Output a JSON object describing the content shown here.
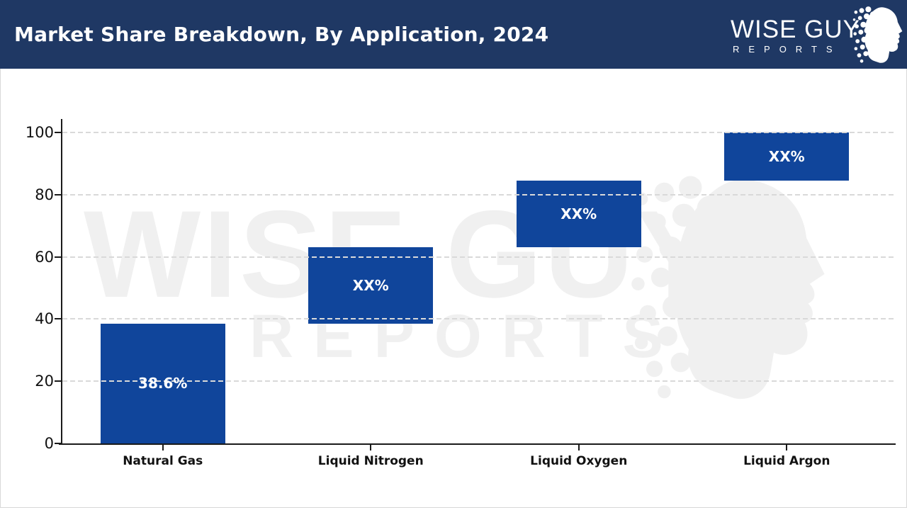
{
  "header": {
    "title": "Market Share Breakdown, By Application, 2024",
    "logo": {
      "primary": "WISE GUY",
      "secondary": "REPORTS"
    }
  },
  "watermark": {
    "primary": "WISE GUY",
    "secondary": "REPORTS"
  },
  "chart_data": {
    "type": "bar",
    "subtype": "waterfall",
    "title": "Market Share Breakdown, By Application, 2024",
    "categories": [
      "Natural Gas",
      "Liquid Nitrogen",
      "Liquid Oxygen",
      "Liquid Argon"
    ],
    "segments": [
      [
        0,
        38.6
      ],
      [
        38.6,
        63.2
      ],
      [
        63.2,
        84.5
      ],
      [
        84.5,
        100
      ]
    ],
    "bar_labels": [
      "38.6%",
      "XX%",
      "XX%",
      "XX%"
    ],
    "ylim": [
      0,
      100
    ],
    "yticks": [
      0,
      20,
      40,
      60,
      80,
      100
    ],
    "grid": {
      "horizontal": true,
      "style": "dashed"
    },
    "legend": "none",
    "colors": {
      "bar": "#10459B",
      "bar_label": "#FFFFFF",
      "axis": "#1A1A1A",
      "grid_line": "#D9D9D9",
      "header_bg": "#1F3864",
      "watermark": "#F0F0F0"
    }
  }
}
